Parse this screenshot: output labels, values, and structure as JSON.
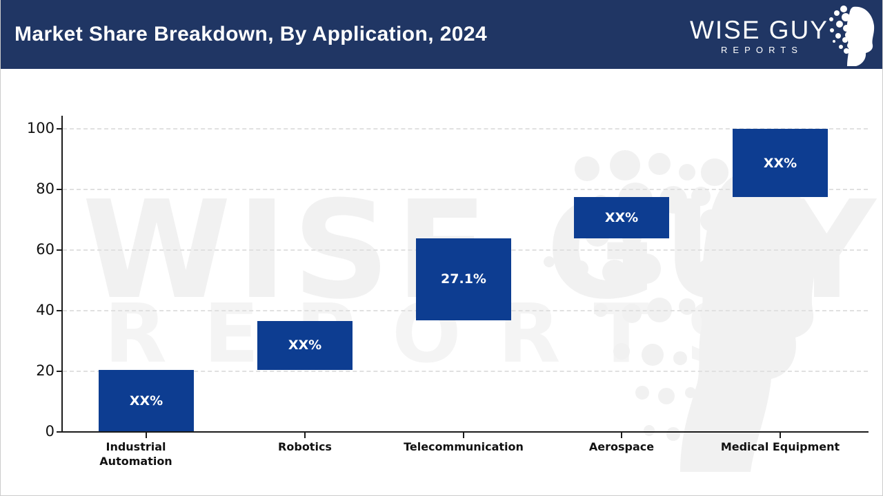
{
  "header": {
    "title": "Market Share Breakdown, By Application, 2024",
    "background_color": "#203664",
    "logo": {
      "line1": "WISE GUY",
      "line2": "REPORTS"
    }
  },
  "watermark": {
    "line1": "WISE GUY",
    "line2": "REPORTS"
  },
  "chart_data": {
    "type": "bar",
    "subtype": "waterfall",
    "title": "Market Share Breakdown, By Application, 2024",
    "categories": [
      "Industrial Automation",
      "Robotics",
      "Telecommunication",
      "Aerospace",
      "Medical Equipment"
    ],
    "segments": [
      {
        "category": "Industrial Automation",
        "start": 0,
        "end": 20.5,
        "label": "XX%"
      },
      {
        "category": "Robotics",
        "start": 20.5,
        "end": 36.7,
        "label": "XX%"
      },
      {
        "category": "Telecommunication",
        "start": 36.8,
        "end": 63.9,
        "label": "27.1%"
      },
      {
        "category": "Aerospace",
        "start": 63.9,
        "end": 77.5,
        "label": "XX%"
      },
      {
        "category": "Medical Equipment",
        "start": 77.5,
        "end": 100,
        "label": "XX%"
      }
    ],
    "yticks": [
      0,
      20,
      40,
      60,
      80,
      100
    ],
    "ylim": [
      0,
      100
    ],
    "xlabel": "",
    "ylabel": "",
    "legend": "none",
    "grid": "horizontal-dashed",
    "bar_color": "#0D3D91",
    "bar_label_color": "#ffffff",
    "gridline_color": "#e0e0e0"
  }
}
